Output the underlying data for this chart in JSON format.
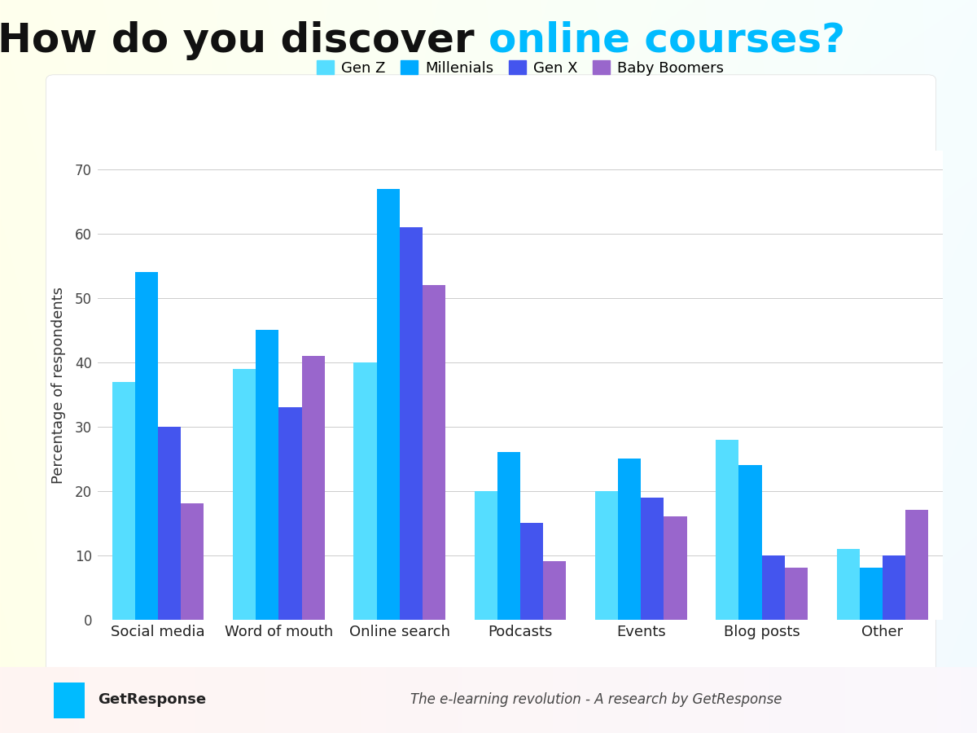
{
  "title_black": "How do you discover ",
  "title_cyan": "online courses?",
  "title_fontsize": 36,
  "categories": [
    "Social media",
    "Word of mouth",
    "Online search",
    "Podcasts",
    "Events",
    "Blog posts",
    "Other"
  ],
  "generations": [
    "Gen Z",
    "Millenials",
    "Gen X",
    "Baby Boomers"
  ],
  "values": {
    "Gen Z": [
      37,
      39,
      40,
      20,
      20,
      28,
      11
    ],
    "Millenials": [
      54,
      45,
      67,
      26,
      25,
      24,
      8
    ],
    "Gen X": [
      30,
      33,
      61,
      15,
      19,
      10,
      10
    ],
    "Baby Boomers": [
      18,
      41,
      52,
      9,
      16,
      8,
      17
    ]
  },
  "colors": {
    "Gen Z": "#55DDFF",
    "Millenials": "#00AAFF",
    "Gen X": "#4455EE",
    "Baby Boomers": "#9966CC"
  },
  "ylabel": "Percentage of respondents",
  "ylim": [
    0,
    73
  ],
  "yticks": [
    0,
    10,
    20,
    30,
    40,
    50,
    60,
    70
  ],
  "legend_fontsize": 13,
  "ylabel_fontsize": 13,
  "xlabel_fontsize": 13,
  "tick_fontsize": 12,
  "footer_text": "The e-learning revolution - A research by GetResponse",
  "footer_brand": "GetResponse",
  "bar_width": 0.19,
  "title_black_color": "#111111",
  "cyan_color": "#00BBFF",
  "grid_color": "#CCCCCC",
  "chart_bg": "#FFFFFF"
}
